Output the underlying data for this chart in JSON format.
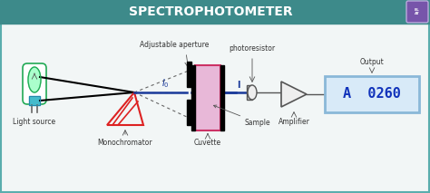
{
  "title": "SPECTROPHOTOMETER",
  "title_bg": "#3d8a8a",
  "title_color": "white",
  "bg_color": "#f2f6f6",
  "border_color": "#5aadad",
  "labels": {
    "light_source": "Light source",
    "adjustable_aperture": "Adjustable aperture",
    "monochromator": "Monochromator",
    "cuvette": "Cuvette",
    "sample": "Sample",
    "photoresistor": "photoresistor",
    "amplifier": "Amplifier",
    "output": "Output",
    "I0": "$I_0$",
    "I": "I"
  },
  "display_text": "A  0260",
  "display_bg": "#d8eaf8",
  "display_border": "#8ab8d8",
  "beam_color": "#1a3a9a",
  "cuvette_fill": "#e8b8d8",
  "cuvette_border": "#cc3366",
  "prism_color": "#dd2222",
  "bulb_color": "#aaffcc",
  "bulb_outline": "#22aa55",
  "bulb_base_color": "#44bbcc",
  "teal_header": "#3d8a8a",
  "badge_color": "#7755aa",
  "badge_border": "#bbaadd"
}
